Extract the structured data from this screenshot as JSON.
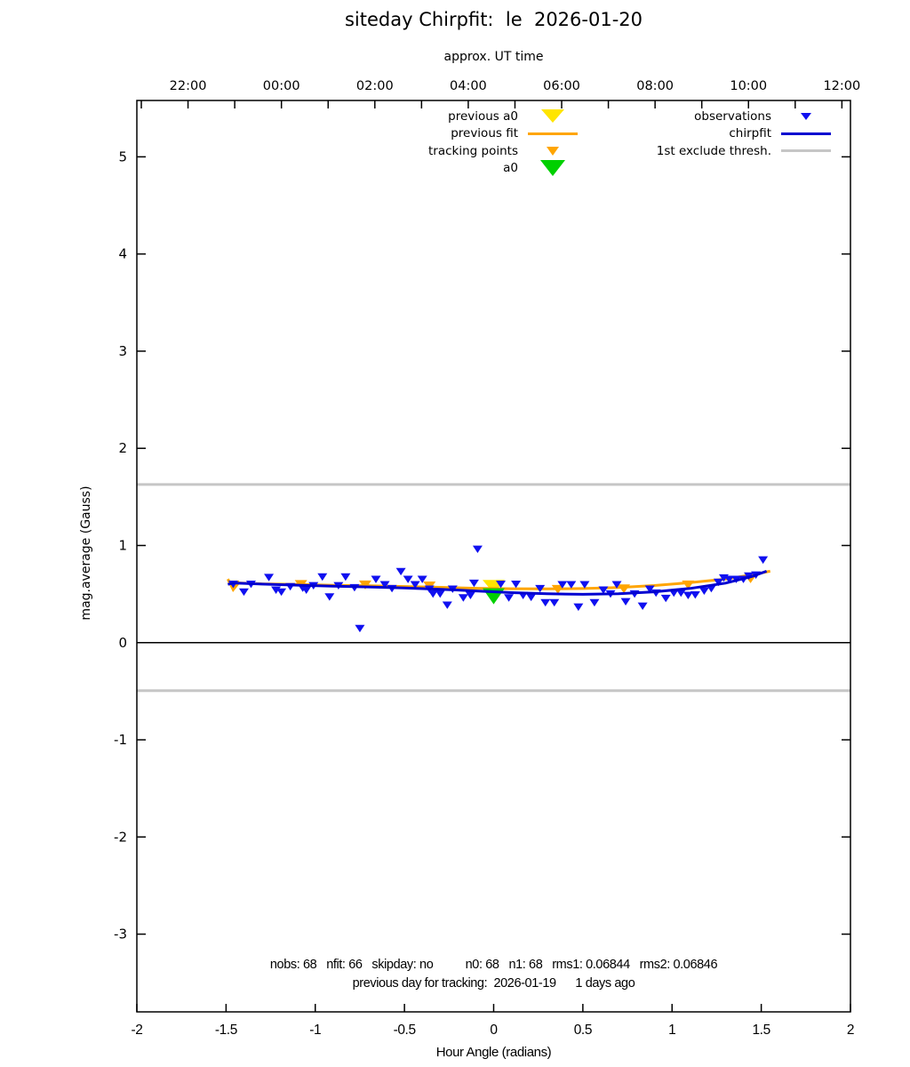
{
  "colors": {
    "observations": "#1010f0",
    "chirpfit": "#0000d0",
    "previous_fit": "#ffa500",
    "tracking_points": "#ffa500",
    "a0": "#00d000",
    "previous_a0": "#ffe500",
    "exclude_threshold": "#c6c6c6",
    "axis": "#000000"
  },
  "legend": {
    "left": [
      {
        "label": "previous a0",
        "marker": "tri-yellow-big"
      },
      {
        "label": "previous fit",
        "marker": "lline-orange"
      },
      {
        "label": "tracking points",
        "marker": "tri-orange-small"
      },
      {
        "label": "a0",
        "marker": "tri-green-big"
      }
    ],
    "right": [
      {
        "label": "observations",
        "marker": "tri-blue-small"
      },
      {
        "label": "chirpfit",
        "marker": "lline-blue"
      },
      {
        "label": "1st exclude thresh.",
        "marker": "lline-gray"
      }
    ]
  },
  "stats": {
    "line1": "nobs: 68   nfit: 66   skipday: no          n0: 68   n1: 68   rms1: 0.06844   rms2: 0.06846",
    "line2": "previous day for tracking:  2026-01-19      1 days ago"
  },
  "chart_data": {
    "type": "scatter",
    "title": "siteday Chirpfit:  le  2026-01-20",
    "x2label": "approx. UT time",
    "xlabel": "Hour Angle (radians)",
    "ylabel": "mag.average (Gauss)",
    "xlim": [
      -2,
      2
    ],
    "ylim": [
      -3.8,
      5.58
    ],
    "grid": false,
    "legend_position": "top-inside",
    "xticks": [
      {
        "v": -2,
        "label": "-2"
      },
      {
        "v": -1.5,
        "label": "-1.5"
      },
      {
        "v": -1,
        "label": "-1"
      },
      {
        "v": -0.5,
        "label": "-0.5"
      },
      {
        "v": 0,
        "label": "0"
      },
      {
        "v": 0.5,
        "label": "0.5"
      },
      {
        "v": 1,
        "label": "1"
      },
      {
        "v": 1.5,
        "label": "1.5"
      },
      {
        "v": 2,
        "label": "2"
      }
    ],
    "yticks": [
      {
        "v": -3,
        "label": "-3"
      },
      {
        "v": -2,
        "label": "-2"
      },
      {
        "v": -1,
        "label": "-1"
      },
      {
        "v": 0,
        "label": "0"
      },
      {
        "v": 1,
        "label": "1"
      },
      {
        "v": 2,
        "label": "2"
      },
      {
        "v": 3,
        "label": "3"
      },
      {
        "v": 4,
        "label": "4"
      },
      {
        "v": 5,
        "label": "5"
      }
    ],
    "x2ticks": [
      {
        "v": -1.7132,
        "label": "22:00"
      },
      {
        "v": -1.1896,
        "label": "00:00"
      },
      {
        "v": -0.666,
        "label": "02:00"
      },
      {
        "v": -0.1424,
        "label": "04:00"
      },
      {
        "v": 0.3812,
        "label": "06:00"
      },
      {
        "v": 0.9048,
        "label": "08:00"
      },
      {
        "v": 1.4284,
        "label": "10:00"
      },
      {
        "v": 1.952,
        "label": "12:00"
      }
    ],
    "x2minor": [
      -1.975,
      -1.4514,
      -0.9278,
      -0.4042,
      0.1194,
      0.643,
      1.1666,
      1.6902
    ],
    "zero_line": 0,
    "exclude_thresholds": [
      1.628,
      -0.494
    ],
    "previous_a0": {
      "x": 0,
      "y": 0.6
    },
    "a0": {
      "x": 0,
      "y": 0.505
    },
    "previous_fit": [
      [
        -1.49,
        0.655
      ],
      [
        -1.46,
        0.545
      ],
      [
        -1.43,
        0.615
      ],
      [
        -1.3,
        0.605
      ],
      [
        -1.1,
        0.6
      ],
      [
        -0.9,
        0.59
      ],
      [
        -0.7,
        0.585
      ],
      [
        -0.5,
        0.578
      ],
      [
        -0.3,
        0.57
      ],
      [
        -0.1,
        0.56
      ],
      [
        0.1,
        0.555
      ],
      [
        0.3,
        0.553
      ],
      [
        0.5,
        0.557
      ],
      [
        0.7,
        0.568
      ],
      [
        0.9,
        0.588
      ],
      [
        1.1,
        0.617
      ],
      [
        1.3,
        0.655
      ],
      [
        1.45,
        0.7
      ],
      [
        1.55,
        0.735
      ]
    ],
    "chirpfit": [
      [
        -1.49,
        0.6
      ],
      [
        -1.46,
        0.615
      ],
      [
        -1.3,
        0.603
      ],
      [
        -1.1,
        0.592
      ],
      [
        -0.9,
        0.582
      ],
      [
        -0.7,
        0.573
      ],
      [
        -0.5,
        0.563
      ],
      [
        -0.3,
        0.55
      ],
      [
        -0.1,
        0.532
      ],
      [
        0.1,
        0.515
      ],
      [
        0.3,
        0.503
      ],
      [
        0.5,
        0.497
      ],
      [
        0.7,
        0.503
      ],
      [
        0.9,
        0.523
      ],
      [
        1.1,
        0.558
      ],
      [
        1.3,
        0.613
      ],
      [
        1.45,
        0.682
      ],
      [
        1.53,
        0.735
      ]
    ],
    "tracking_points": [
      [
        -1.46,
        0.595
      ],
      [
        -1.08,
        0.6
      ],
      [
        -0.72,
        0.595
      ],
      [
        -0.36,
        0.585
      ],
      [
        0.36,
        0.55
      ],
      [
        0.73,
        0.555
      ],
      [
        1.09,
        0.595
      ],
      [
        1.44,
        0.66
      ]
    ],
    "observations": [
      [
        -1.46,
        0.6
      ],
      [
        -1.4,
        0.52
      ],
      [
        -1.36,
        0.6
      ],
      [
        -1.26,
        0.67
      ],
      [
        -1.22,
        0.54
      ],
      [
        -1.19,
        0.52
      ],
      [
        -1.14,
        0.575
      ],
      [
        -1.07,
        0.56
      ],
      [
        -1.05,
        0.54
      ],
      [
        -1.01,
        0.585
      ],
      [
        -0.96,
        0.675
      ],
      [
        -0.92,
        0.47
      ],
      [
        -0.87,
        0.585
      ],
      [
        -0.83,
        0.675
      ],
      [
        -0.78,
        0.565
      ],
      [
        -0.75,
        0.145
      ],
      [
        -0.66,
        0.65
      ],
      [
        -0.61,
        0.595
      ],
      [
        -0.57,
        0.555
      ],
      [
        -0.52,
        0.73
      ],
      [
        -0.48,
        0.65
      ],
      [
        -0.44,
        0.595
      ],
      [
        -0.4,
        0.65
      ],
      [
        -0.36,
        0.55
      ],
      [
        -0.34,
        0.5
      ],
      [
        -0.3,
        0.5
      ],
      [
        -0.26,
        0.385
      ],
      [
        -0.23,
        0.55
      ],
      [
        -0.17,
        0.46
      ],
      [
        -0.13,
        0.485
      ],
      [
        -0.11,
        0.61
      ],
      [
        -0.09,
        0.96
      ],
      [
        0.04,
        0.6
      ],
      [
        0.085,
        0.46
      ],
      [
        0.125,
        0.6
      ],
      [
        0.165,
        0.485
      ],
      [
        0.21,
        0.465
      ],
      [
        0.26,
        0.555
      ],
      [
        0.29,
        0.41
      ],
      [
        0.34,
        0.41
      ],
      [
        0.385,
        0.595
      ],
      [
        0.435,
        0.595
      ],
      [
        0.475,
        0.365
      ],
      [
        0.51,
        0.595
      ],
      [
        0.565,
        0.41
      ],
      [
        0.615,
        0.54
      ],
      [
        0.655,
        0.5
      ],
      [
        0.69,
        0.595
      ],
      [
        0.74,
        0.42
      ],
      [
        0.79,
        0.5
      ],
      [
        0.835,
        0.375
      ],
      [
        0.875,
        0.55
      ],
      [
        0.91,
        0.51
      ],
      [
        0.965,
        0.455
      ],
      [
        1.01,
        0.51
      ],
      [
        1.05,
        0.51
      ],
      [
        1.09,
        0.485
      ],
      [
        1.13,
        0.49
      ],
      [
        1.18,
        0.53
      ],
      [
        1.22,
        0.555
      ],
      [
        1.26,
        0.62
      ],
      [
        1.29,
        0.665
      ],
      [
        1.32,
        0.65
      ],
      [
        1.36,
        0.65
      ],
      [
        1.4,
        0.65
      ],
      [
        1.43,
        0.685
      ],
      [
        1.47,
        0.695
      ],
      [
        1.51,
        0.85
      ]
    ]
  }
}
